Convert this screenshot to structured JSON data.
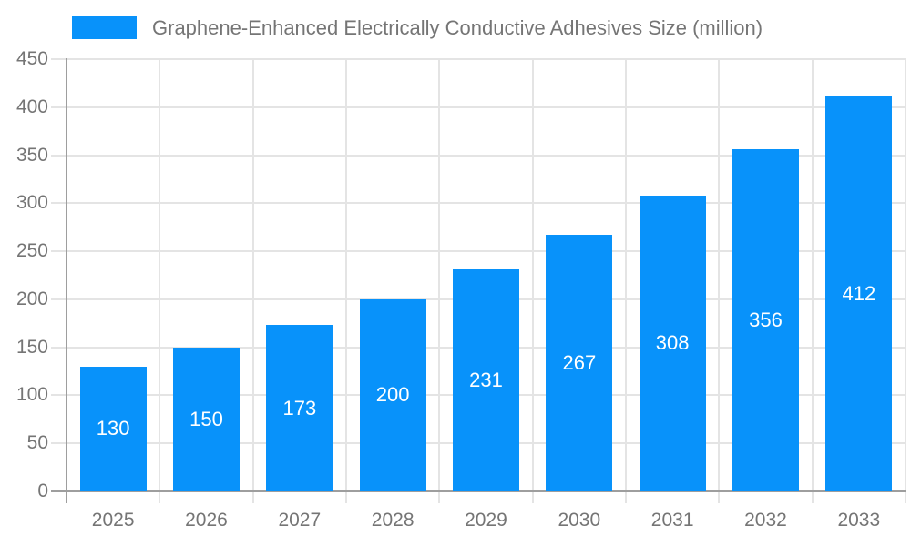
{
  "legend": {
    "label": "Graphene-Enhanced Electrically Conductive Adhesives Size (million)"
  },
  "chart_data": {
    "type": "bar",
    "categories": [
      "2025",
      "2026",
      "2027",
      "2028",
      "2029",
      "2030",
      "2031",
      "2032",
      "2033"
    ],
    "values": [
      130,
      150,
      173,
      200,
      231,
      267,
      308,
      356,
      412
    ],
    "title": "Graphene-Enhanced Electrically Conductive Adhesives Size (million)",
    "xlabel": "",
    "ylabel": "",
    "ylim": [
      0,
      450
    ],
    "yticks": [
      0,
      50,
      100,
      150,
      200,
      250,
      300,
      350,
      400,
      450
    ],
    "grid": true,
    "legend_position": "top",
    "value_labels_inside_bars": true,
    "colors": {
      "bar": "#0892fa",
      "axis": "#9e9e9e",
      "grid": "#e4e4e4",
      "tick_text": "#757575",
      "value_label_text": "#ffffff",
      "background": "#ffffff"
    }
  }
}
